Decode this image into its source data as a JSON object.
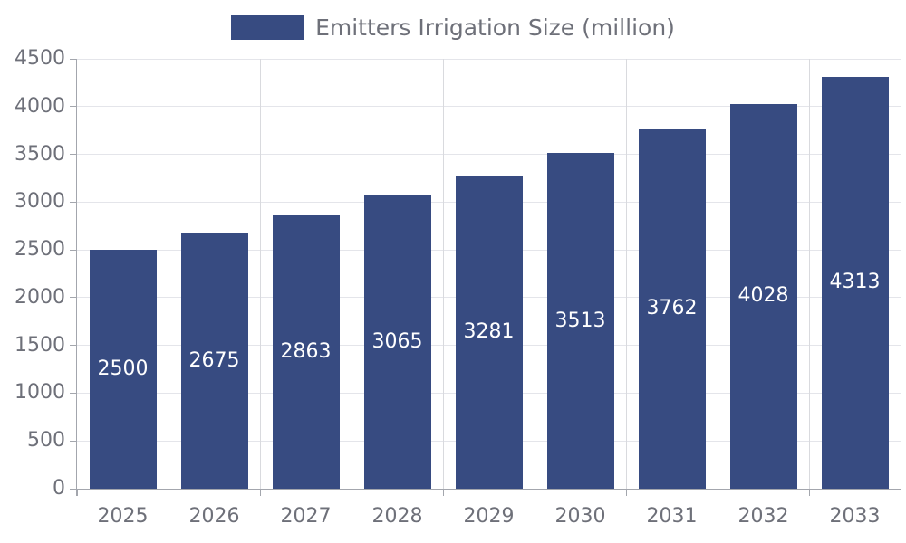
{
  "legend": {
    "label": "Emitters Irrigation Size (million)",
    "swatch_color": "#374b81"
  },
  "chart_data": {
    "type": "bar",
    "title": "Emitters Irrigation Size (million)",
    "categories": [
      "2025",
      "2026",
      "2027",
      "2028",
      "2029",
      "2030",
      "2031",
      "2032",
      "2033"
    ],
    "series": [
      {
        "name": "Emitters Irrigation Size (million)",
        "color": "#374b81",
        "values": [
          2500,
          2675,
          2863,
          3065,
          3281,
          3513,
          3762,
          4028,
          4313
        ]
      }
    ],
    "value_labels": {
      "visible": true,
      "position": "inside-middle",
      "color": "#ffffff",
      "values": [
        "2500",
        "2675",
        "2863",
        "3065",
        "3281",
        "3513",
        "3762",
        "4028",
        "4313"
      ]
    },
    "xlabel": "",
    "ylabel": "",
    "ylim": [
      0,
      4500
    ],
    "yticks": [
      0,
      500,
      1000,
      1500,
      2000,
      2500,
      3000,
      3500,
      4000,
      4500
    ],
    "grid": true,
    "legend_position": "top-center",
    "colors": {
      "bar": "#374b81",
      "axis_text": "#6e7079",
      "axis_line": "#a3a6ad",
      "gridline_h": "#e4e5ea",
      "gridline_v": "#d9dade",
      "background": "#ffffff"
    }
  }
}
